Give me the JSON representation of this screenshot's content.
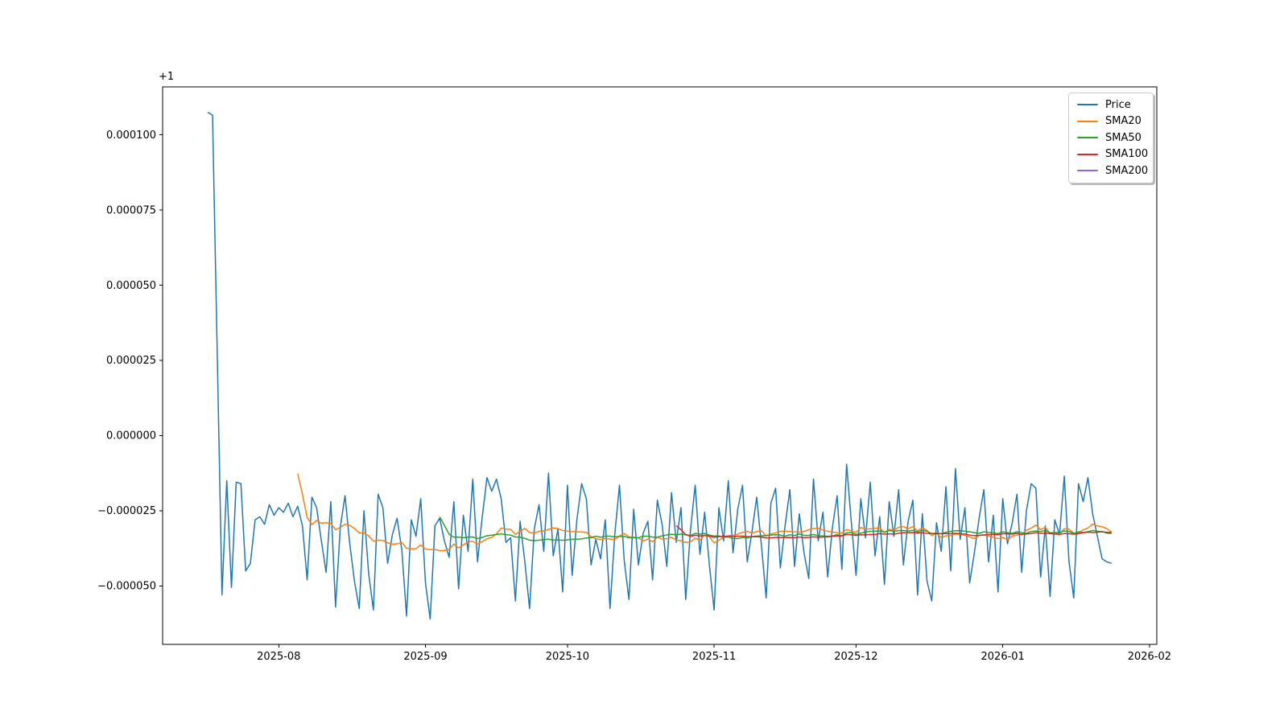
{
  "figure": {
    "background": "#ffffff"
  },
  "chart_data": {
    "type": "line",
    "title": "",
    "xlabel": "",
    "ylabel": "",
    "grid": false,
    "x_axis": {
      "start_date": "2025-07-17",
      "interval": "daily",
      "tick_labels": [
        "2025-08",
        "2025-09",
        "2025-10",
        "2025-11",
        "2025-12",
        "2026-01",
        "2026-02"
      ],
      "tick_day_offsets": [
        15,
        46,
        76,
        107,
        137,
        168,
        199
      ]
    },
    "y_axis": {
      "offset_label": "+1",
      "tick_labels": [
        "0.000100",
        "0.000075",
        "0.000050",
        "0.000025",
        "0.000000",
        "−0.000025",
        "−0.000050"
      ],
      "tick_values_e6": [
        100,
        75,
        50,
        25,
        0,
        -25,
        -50
      ]
    },
    "series": [
      {
        "name": "Price",
        "color": "#1f77b4",
        "kind": "raw"
      },
      {
        "name": "SMA20",
        "color": "#ff7f0e",
        "kind": "sma",
        "window": 20
      },
      {
        "name": "SMA50",
        "color": "#2ca02c",
        "kind": "sma",
        "window": 50
      },
      {
        "name": "SMA100",
        "color": "#d62728",
        "kind": "sma",
        "window": 100
      },
      {
        "name": "SMA200",
        "color": "#9467bd",
        "kind": "sma",
        "window": 200
      }
    ],
    "price": {
      "base": 1.0,
      "offset_unit": 1e-06,
      "offsets_e6": [
        107.5,
        106.5,
        27,
        -53,
        -15,
        -50.5,
        -15.5,
        -16,
        -45,
        -42.5,
        -28,
        -27,
        -29.5,
        -23,
        -26.5,
        -24,
        -25.5,
        -22.5,
        -27,
        -23.5,
        -30,
        -48,
        -20.5,
        -24,
        -35,
        -45.5,
        -22,
        -57,
        -30.5,
        -20,
        -36,
        -48.5,
        -57.5,
        -25,
        -46,
        -58,
        -19.5,
        -24,
        -42.5,
        -33,
        -27.5,
        -38,
        -60,
        -28,
        -33.5,
        -21,
        -49,
        -61,
        -30,
        -27.5,
        -35,
        -40.5,
        -22,
        -51,
        -26.5,
        -38.5,
        -14.5,
        -42,
        -27,
        -14,
        -18.5,
        -14.5,
        -21,
        -35.5,
        -34,
        -55,
        -28.5,
        -42,
        -57.5,
        -31,
        -23,
        -38.5,
        -12.5,
        -40,
        -31,
        -52,
        -16.5,
        -46.5,
        -28,
        -16,
        -21,
        -43,
        -34.5,
        -41,
        -28,
        -57.5,
        -33,
        -16.5,
        -41.5,
        -54.5,
        -24.5,
        -43,
        -32.5,
        -28.5,
        -48,
        -21.5,
        -29.5,
        -43.5,
        -19,
        -35.5,
        -24,
        -54.5,
        -31.5,
        -16.5,
        -39.5,
        -25.5,
        -43,
        -58,
        -24,
        -35,
        -15,
        -39,
        -24.5,
        -16.5,
        -42,
        -32,
        -20.5,
        -36.5,
        -54,
        -22.5,
        -17.5,
        -44,
        -30,
        -18,
        -43.5,
        -26,
        -39,
        -47.5,
        -14.5,
        -35,
        -25.5,
        -47,
        -30.5,
        -20,
        -44.5,
        -9.5,
        -29,
        -46.5,
        -21,
        -34,
        -15.5,
        -40,
        -27,
        -49.5,
        -22,
        -33.5,
        -18,
        -43,
        -28.5,
        -21.5,
        -53,
        -26,
        -48.5,
        -55,
        -29,
        -38.5,
        -17,
        -45,
        -11,
        -34.5,
        -24,
        -49,
        -39,
        -27.5,
        -18,
        -42,
        -26.5,
        -52,
        -21,
        -36,
        -29,
        -19.5,
        -45.5,
        -25,
        -16,
        -17.5,
        -47,
        -30,
        -53.5,
        -28,
        -33,
        -13.5,
        -42,
        -54,
        -16,
        -22,
        -14,
        -26,
        -33.5,
        -41,
        -42,
        -42.5
      ]
    },
    "legend": {
      "position": "upper right",
      "entries": [
        "Price",
        "SMA20",
        "SMA50",
        "SMA100",
        "SMA200"
      ]
    }
  }
}
